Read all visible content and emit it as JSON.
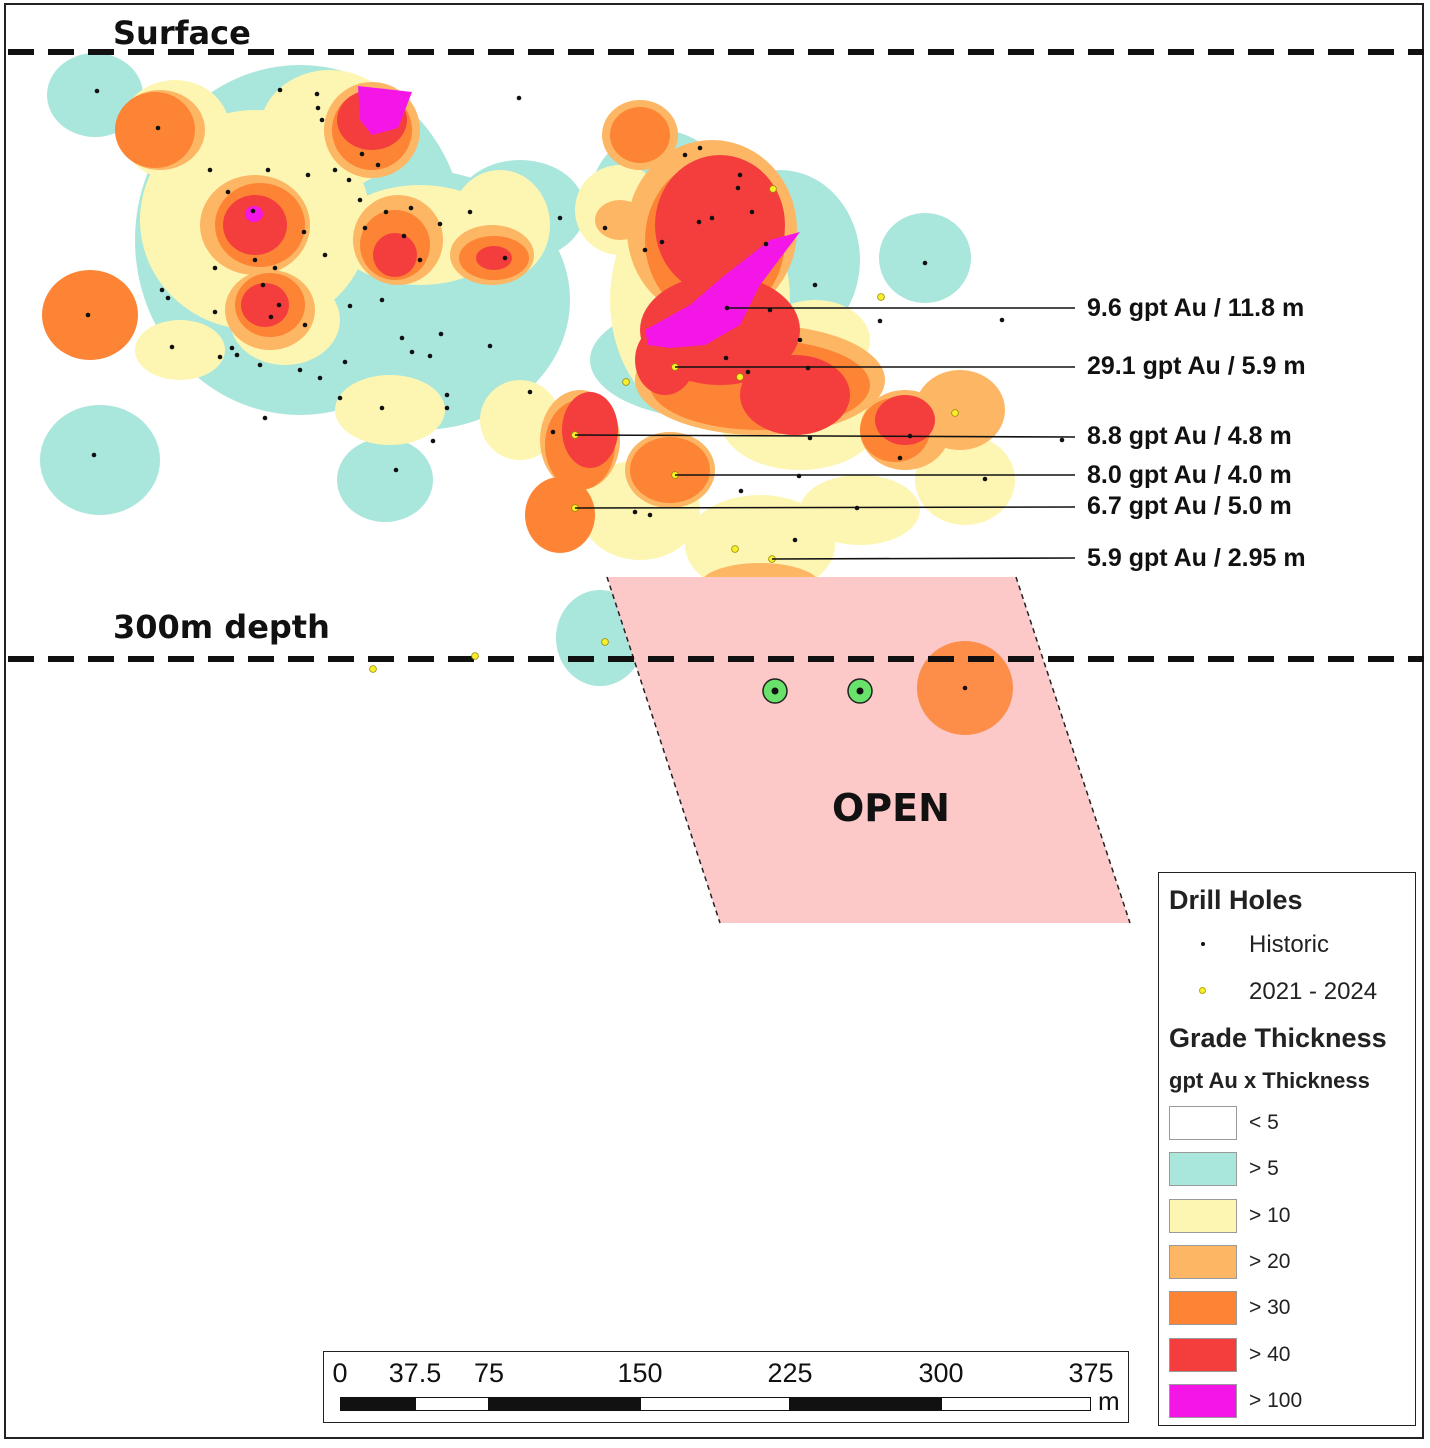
{
  "labels": {
    "surface": "Surface",
    "depth": "300m depth",
    "open": "OPEN"
  },
  "callouts": [
    "9.6 gpt Au / 11.8 m",
    "29.1 gpt Au / 5.9 m",
    "8.8 gpt Au / 4.8 m",
    "8.0 gpt Au / 4.0 m",
    "6.7 gpt Au / 5.0 m",
    "5.9 gpt Au / 2.95 m"
  ],
  "legend": {
    "drill_holes_title": "Drill Holes",
    "historic": "Historic",
    "recent": "2021 - 2024",
    "grade_title": "Grade Thickness",
    "grade_subtitle": "gpt Au x Thickness",
    "classes": [
      {
        "label": "< 5",
        "color": "#ffffff"
      },
      {
        "label": "> 5",
        "color": "#a9e6dc"
      },
      {
        "label": "> 10",
        "color": "#fdf6b2"
      },
      {
        "label": "> 20",
        "color": "#fcb664"
      },
      {
        "label": "> 30",
        "color": "#fc8434"
      },
      {
        "label": "> 40",
        "color": "#f43e3e"
      },
      {
        "label": "> 100",
        "color": "#f416e6"
      }
    ]
  },
  "scale": {
    "ticks": [
      "0",
      "37.5",
      "75",
      "150",
      "225",
      "300",
      "375"
    ],
    "unit": "m"
  },
  "colors": {
    "open_zone": "#fcc8c8",
    "target_marker": "#69e26b",
    "recent_hole": "#f7ef2c",
    "historic_hole": "#111111"
  }
}
